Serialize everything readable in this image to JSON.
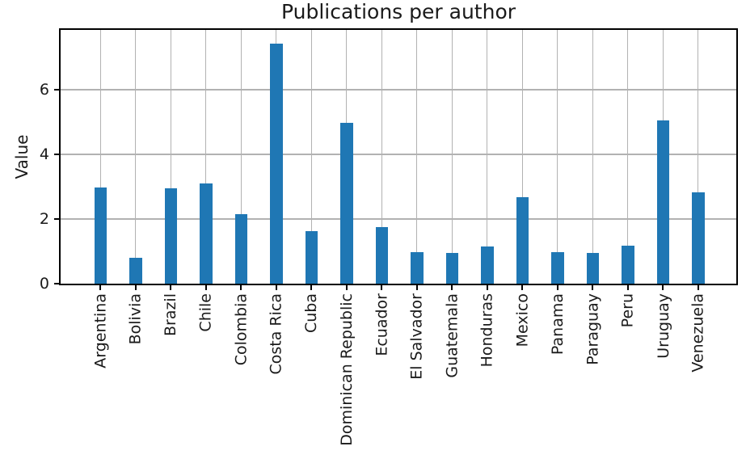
{
  "figure": {
    "background": "#ffffff"
  },
  "chart_data": {
    "type": "bar",
    "title": "Publications per author",
    "xlabel": "",
    "ylabel": "Value",
    "categories": [
      "Argentina",
      "Bolivia",
      "Brazil",
      "Chile",
      "Colombia",
      "Costa Rica",
      "Cuba",
      "Dominican Republic",
      "Ecuador",
      "El Salvador",
      "Guatemala",
      "Honduras",
      "Mexico",
      "Panama",
      "Paraguay",
      "Peru",
      "Uruguay",
      "Venezuela"
    ],
    "values": [
      2.98,
      0.81,
      2.94,
      3.11,
      2.16,
      7.42,
      1.63,
      4.98,
      1.76,
      0.97,
      0.96,
      1.15,
      2.67,
      0.97,
      0.96,
      1.17,
      5.06,
      2.82
    ],
    "yticks": [
      0,
      2,
      4,
      6
    ],
    "ylim": [
      0,
      7.85
    ],
    "grid": true,
    "legend": false,
    "xtick_rotation": 90,
    "bar_color": "#1f77b4",
    "grid_color": "#b2b2b2",
    "axis_color": "#000000",
    "text_color": "#1a1a1a"
  }
}
